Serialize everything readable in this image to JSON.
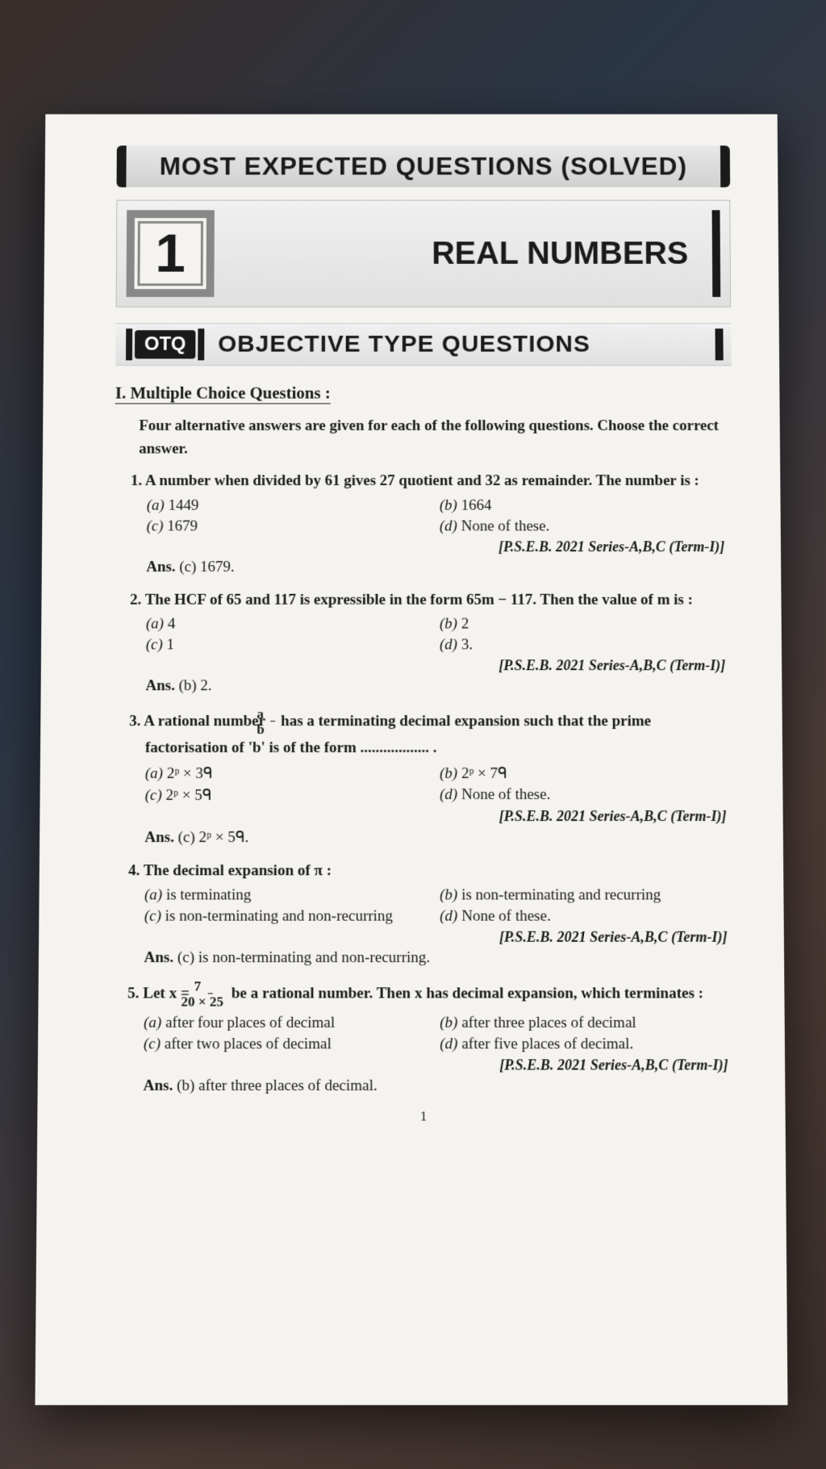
{
  "banner": {
    "title": "MOST EXPECTED QUESTIONS (SOLVED)"
  },
  "chapter": {
    "number": "1",
    "title": "REAL NUMBERS"
  },
  "otq": {
    "badge": "OTQ",
    "title": "OBJECTIVE TYPE QUESTIONS"
  },
  "section_heading": "I. Multiple Choice Questions :",
  "instructions": "Four alternative answers are given for each of the following questions. Choose the correct answer.",
  "questions": [
    {
      "num": "1.",
      "text": "A number when divided by 61 gives 27 quotient and 32 as remainder. The number is :",
      "options": {
        "a": "1449",
        "b": "1664",
        "c": "1679",
        "d": "None of these."
      },
      "source": "[P.S.E.B. 2021 Series-A,B,C (Term-I)]",
      "answer_label": "Ans.",
      "answer": "(c) 1679."
    },
    {
      "num": "2.",
      "text": "The HCF of 65 and 117 is expressible in the form 65m − 117. Then the value of m is :",
      "options": {
        "a": "4",
        "b": "2",
        "c": "1",
        "d": "3."
      },
      "source": "[P.S.E.B. 2021 Series-A,B,C (Term-I)]",
      "answer_label": "Ans.",
      "answer": "(b) 2."
    },
    {
      "num": "3.",
      "text_pre": "A rational number ",
      "frac_num": "a",
      "frac_den": "b",
      "text_post": " has a terminating decimal expansion such that the prime factorisation of 'b' is of the form .................. .",
      "options": {
        "a": "2ᵖ × 3ᑫ",
        "b": "2ᵖ × 7ᑫ",
        "c": "2ᵖ × 5ᑫ",
        "d": "None of these."
      },
      "source": "[P.S.E.B. 2021 Series-A,B,C (Term-I)]",
      "answer_label": "Ans.",
      "answer": "(c) 2ᵖ × 5ᑫ."
    },
    {
      "num": "4.",
      "text": "The decimal expansion of π :",
      "options": {
        "a": "is terminating",
        "b": "is non-terminating and recurring",
        "c": "is non-terminating and non-recurring",
        "d": "None of these."
      },
      "source": "[P.S.E.B. 2021 Series-A,B,C (Term-I)]",
      "answer_label": "Ans.",
      "answer": "(c) is non-terminating and non-recurring."
    },
    {
      "num": "5.",
      "text_pre": "Let x = ",
      "frac_num": "7",
      "frac_den": "20 × 25",
      "text_post": " be a rational number. Then x has decimal expansion, which terminates :",
      "options": {
        "a": "after four places of decimal",
        "b": "after three places of decimal",
        "c": "after two places of decimal",
        "d": "after five places of decimal."
      },
      "source": "[P.S.E.B. 2021 Series-A,B,C (Term-I)]",
      "answer_label": "Ans.",
      "answer": "(b) after three places of decimal."
    }
  ],
  "page_number": "1"
}
